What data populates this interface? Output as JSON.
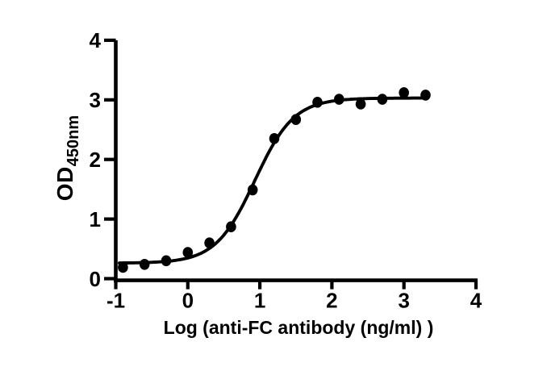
{
  "figure": {
    "kind": "ELISA sigmoidal dose-response curve",
    "background": "#ffffff",
    "ink_color": "#000000"
  },
  "chart_data": {
    "type": "scatter",
    "subtype": "sigmoidal-4PL-fit",
    "title": "",
    "xlabel": "Log (anti-FC antibody (ng/ml) )",
    "ylabel_main": "OD",
    "ylabel_sub": "450nm",
    "xlim": [
      -1,
      4
    ],
    "ylim": [
      0,
      4
    ],
    "x_ticks": [
      "-1",
      "0",
      "1",
      "2",
      "3",
      "4"
    ],
    "y_ticks": [
      "0",
      "1",
      "2",
      "3",
      "4"
    ],
    "grid": false,
    "legend": "none",
    "marker": "filled-circle",
    "point_color": "#000000",
    "curve_color": "#000000",
    "points": {
      "x": [
        -0.9,
        -0.6,
        -0.3,
        0.0,
        0.3,
        0.6,
        0.9,
        1.2,
        1.5,
        1.8,
        2.1,
        2.4,
        2.7,
        3.0,
        3.3
      ],
      "y": [
        0.19,
        0.24,
        0.3,
        0.44,
        0.6,
        0.87,
        1.49,
        2.35,
        2.67,
        2.96,
        3.01,
        2.93,
        3.01,
        3.12,
        3.08
      ]
    },
    "fit_curve": {
      "model": "four-parameter-logistic",
      "bottom": 0.26,
      "top": 3.03,
      "log_ec50": 0.93,
      "hill_slope": 1.6,
      "x_start": -0.95,
      "x_end": 3.3
    }
  }
}
